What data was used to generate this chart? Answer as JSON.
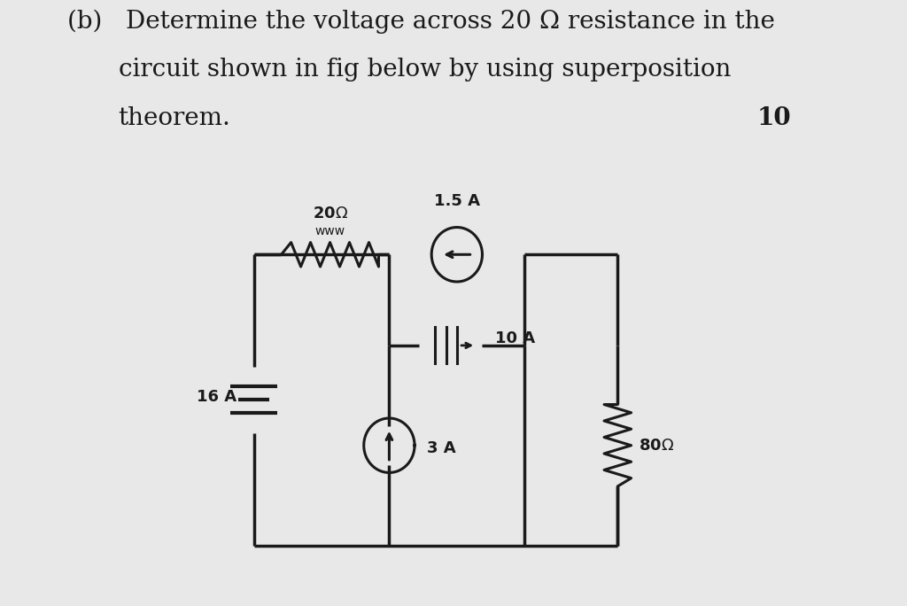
{
  "bg_color": "#e8e8e8",
  "paper_color": "#f0eeea",
  "text_color": "#1a1a1a",
  "line_color": "#1a1a1a",
  "title_line1": "(b)   Determine the voltage across 20 Ω resistance in the",
  "title_line2": "circuit shown in fig below by using superposition",
  "title_line3": "theorem.",
  "marks": "10",
  "title_fontsize": 20,
  "marks_fontsize": 20,
  "circuit": {
    "L": 0.3,
    "R": 0.73,
    "T": 0.58,
    "M": 0.43,
    "B": 0.1,
    "IL": 0.46,
    "IR": 0.62
  }
}
